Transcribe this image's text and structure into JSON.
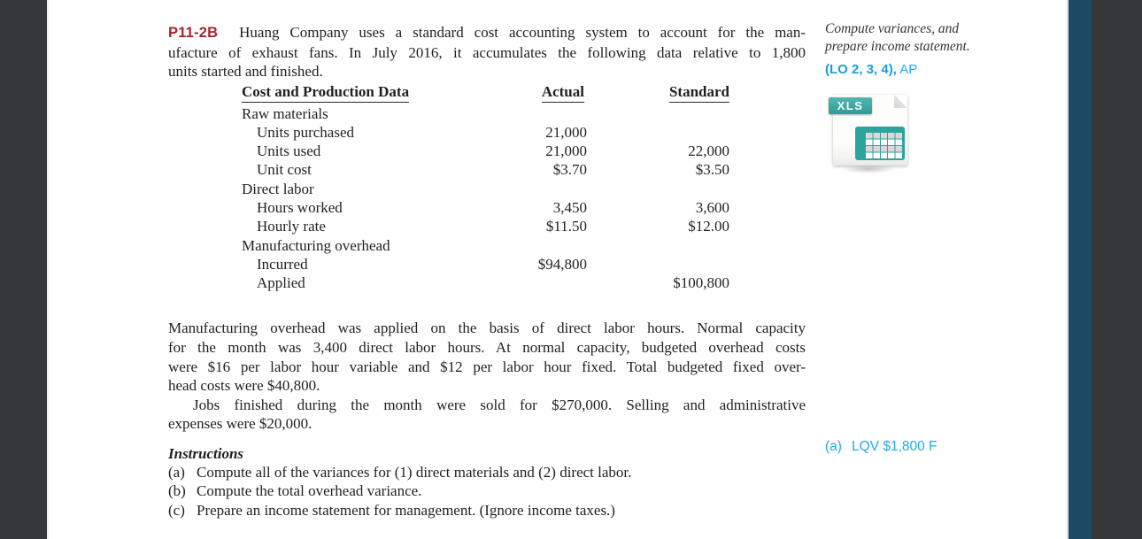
{
  "colors": {
    "problem_red": "#a92430",
    "link_blue": "#189fd9",
    "check_blue": "#29a9e0",
    "accent_bar_blue": "#1f4a66",
    "frame_gray": "#353739",
    "xls_teal": "#2da39d",
    "text_color": "#231f20"
  },
  "problem": {
    "id": "P11-2B",
    "intro_lines": [
      "Huang Company uses a standard cost accounting system to account for the man-",
      "ufacture of exhaust fans. In July 2016, it accumulates the following data relative to 1,800",
      "units started and finished."
    ]
  },
  "cost_table": {
    "headers": [
      "Cost and Production Data",
      "Actual",
      "Standard"
    ],
    "rows": [
      {
        "label": "Raw materials",
        "indent": 0,
        "actual": "",
        "standard": ""
      },
      {
        "label": "Units purchased",
        "indent": 1,
        "actual": "21,000",
        "standard": ""
      },
      {
        "label": "Units used",
        "indent": 1,
        "actual": "21,000",
        "standard": "22,000"
      },
      {
        "label": "Unit cost",
        "indent": 1,
        "actual": "$3.70",
        "standard": "$3.50"
      },
      {
        "label": "Direct labor",
        "indent": 0,
        "actual": "",
        "standard": ""
      },
      {
        "label": "Hours worked",
        "indent": 1,
        "actual": "3,450",
        "standard": "3,600"
      },
      {
        "label": "Hourly rate",
        "indent": 1,
        "actual": "$11.50",
        "standard": "$12.00"
      },
      {
        "label": "Manufacturing overhead",
        "indent": 0,
        "actual": "",
        "standard": ""
      },
      {
        "label": "Incurred",
        "indent": 1,
        "actual": "$94,800",
        "standard": ""
      },
      {
        "label": "Applied",
        "indent": 1,
        "actual": "",
        "standard": "$100,800"
      }
    ]
  },
  "body_lines": [
    "Manufacturing overhead was applied on the basis of direct labor hours. Normal capacity",
    "for the month was 3,400 direct labor hours. At normal capacity, budgeted overhead costs",
    "were $16 per labor hour variable and $12 per labor hour fixed. Total budgeted fixed over-",
    "head costs were $40,800.",
    "Jobs finished during the month were sold for $270,000. Selling and administrative",
    "expenses were $20,000."
  ],
  "instructions": {
    "heading": "Instructions",
    "items": [
      {
        "marker": "(a)",
        "text": "Compute all of the variances for (1) direct materials and (2) direct labor."
      },
      {
        "marker": "(b)",
        "text": "Compute the total overhead variance."
      },
      {
        "marker": "(c)",
        "text": "Prepare an income statement for management. (Ignore income taxes.)"
      }
    ]
  },
  "margin": {
    "objective_lines": [
      "Compute variances, and",
      "prepare income statement."
    ],
    "lo_tag": "(LO 2, 3, 4),",
    "lo_level": "AP",
    "xls_label": "XLS",
    "check_figure": {
      "marker": "(a)",
      "text": "LQV $1,800 F"
    }
  }
}
